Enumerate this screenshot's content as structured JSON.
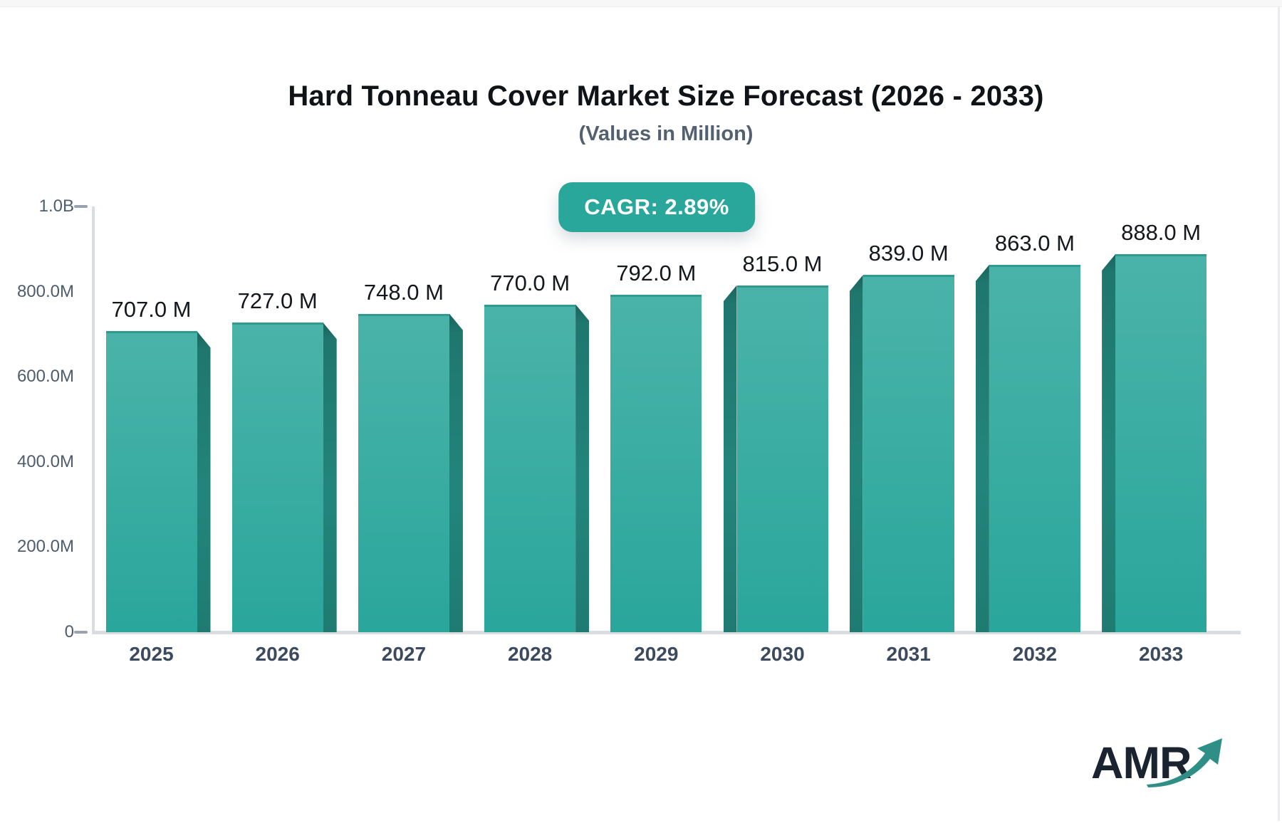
{
  "header": {
    "title": "Hard Tonneau Cover Market Size Forecast (2026 - 2033)",
    "subtitle": "(Values in Million)"
  },
  "badge": {
    "label": "CAGR: 2.89%"
  },
  "chart_data": {
    "type": "bar",
    "title": "Hard Tonneau Cover Market Size Forecast (2026 - 2033)",
    "subtitle": "(Values in Million)",
    "categories": [
      "2025",
      "2026",
      "2027",
      "2028",
      "2029",
      "2030",
      "2031",
      "2032",
      "2033"
    ],
    "values": [
      707,
      727,
      748,
      770,
      792,
      815,
      839,
      863,
      888
    ],
    "bar_labels": [
      "707.0 M",
      "727.0 M",
      "748.0 M",
      "770.0 M",
      "792.0 M",
      "815.0 M",
      "839.0 M",
      "863.0 M",
      "888.0 M"
    ],
    "y_ticks": [
      {
        "value": 1000,
        "label": "1.0B"
      },
      {
        "value": 800,
        "label": "800.0M"
      },
      {
        "value": 600,
        "label": "600.0M"
      },
      {
        "value": 400,
        "label": "400.0M"
      },
      {
        "value": 200,
        "label": "200.0M"
      },
      {
        "value": 0,
        "label": "0"
      }
    ],
    "ylim": [
      0,
      1000
    ],
    "xlabel": "",
    "ylabel": "",
    "grid": false,
    "legend": false,
    "annotation": "CAGR: 2.89%"
  },
  "colors": {
    "bar_face_top": "#4ab3a9",
    "bar_face_bottom": "#2aa69b",
    "bar_side_dark": "#1f776e",
    "badge_bg": "#2aa79b",
    "axis_line": "#d9dce1",
    "title_text": "#0f1318",
    "subtitle_text": "#52606f",
    "y_tick_text": "#4e5d6e",
    "x_tick_text": "#3c4a5e"
  },
  "logo": {
    "text": "AMR"
  }
}
